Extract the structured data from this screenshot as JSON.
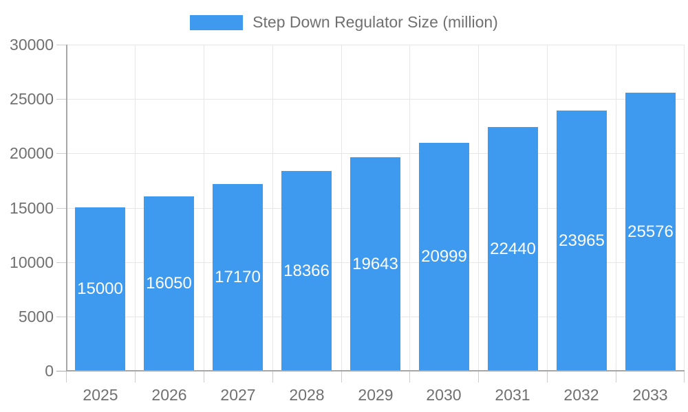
{
  "chart_data": {
    "type": "bar",
    "title": "Step Down Regulator Size (million)",
    "categories": [
      "2025",
      "2026",
      "2027",
      "2028",
      "2029",
      "2030",
      "2031",
      "2032",
      "2033"
    ],
    "series": [
      {
        "name": "Step Down Regulator Size (million)",
        "values": [
          15000,
          16050,
          17170,
          18366,
          19643,
          20999,
          22440,
          23965,
          25576
        ]
      }
    ],
    "xlabel": "",
    "ylabel": "",
    "ylim": [
      0,
      30000
    ],
    "yticks": [
      0,
      5000,
      10000,
      15000,
      20000,
      25000,
      30000
    ],
    "grid": "on",
    "legend_position": "top",
    "bar_value_labels": "inside-center-white"
  },
  "colors": {
    "bar": "#3E9AEF",
    "grid": "#e6e6e6",
    "axis_line": "#a6a6a6",
    "tick": "#cccccc",
    "text": "#707070",
    "bar_label_text": "#ffffff",
    "background": "#ffffff"
  }
}
